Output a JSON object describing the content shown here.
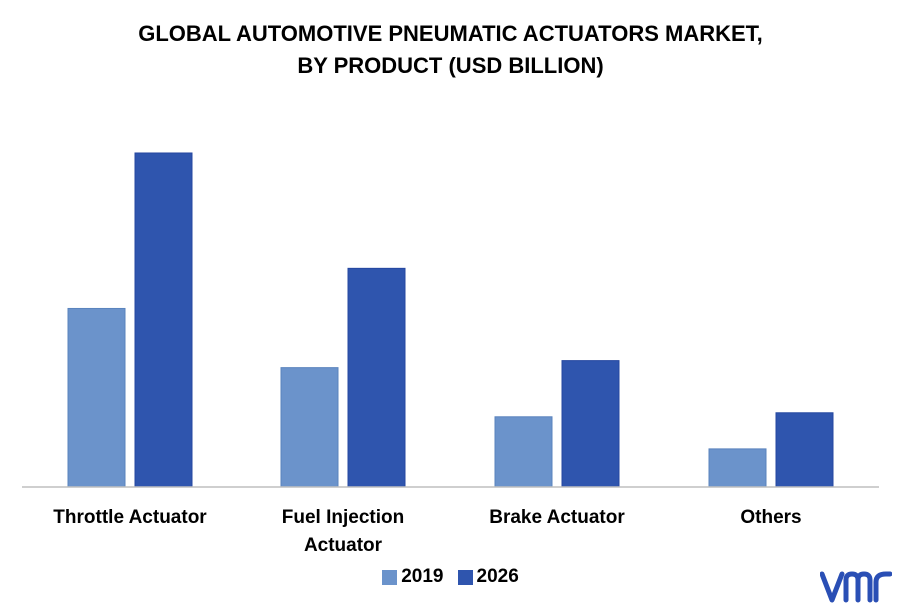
{
  "title_lines": [
    "GLOBAL AUTOMOTIVE PNEUMATIC ACTUATORS MARKET,",
    "BY PRODUCT (USD BILLION)"
  ],
  "legend": [
    {
      "name": "2019",
      "color": "#6b93cb"
    },
    {
      "name": "2026",
      "color": "#2f55ae"
    }
  ],
  "logo_text": "vmr",
  "logo_color": "#2a4fb5",
  "chart_data": {
    "type": "bar",
    "title": "GLOBAL AUTOMOTIVE PNEUMATIC ACTUATORS MARKET, BY PRODUCT (USD BILLION)",
    "categories": [
      "Throttle Actuator",
      "Fuel Injection Actuator",
      "Brake Actuator",
      "Others"
    ],
    "category_label_lines": [
      [
        "Throttle Actuator"
      ],
      [
        "Fuel Injection",
        "Actuator"
      ],
      [
        "Brake Actuator"
      ],
      [
        "Others"
      ]
    ],
    "series": [
      {
        "name": "2019",
        "values": [
          1.78,
          1.19,
          0.7,
          0.38
        ],
        "color": "#6b93cb"
      },
      {
        "name": "2026",
        "values": [
          3.33,
          2.18,
          1.26,
          0.74
        ],
        "color": "#2f55ae"
      }
    ],
    "ylim": [
      0,
      3.5
    ],
    "grid": false,
    "legend_position": "bottom",
    "xlabel": "",
    "ylabel": ""
  }
}
